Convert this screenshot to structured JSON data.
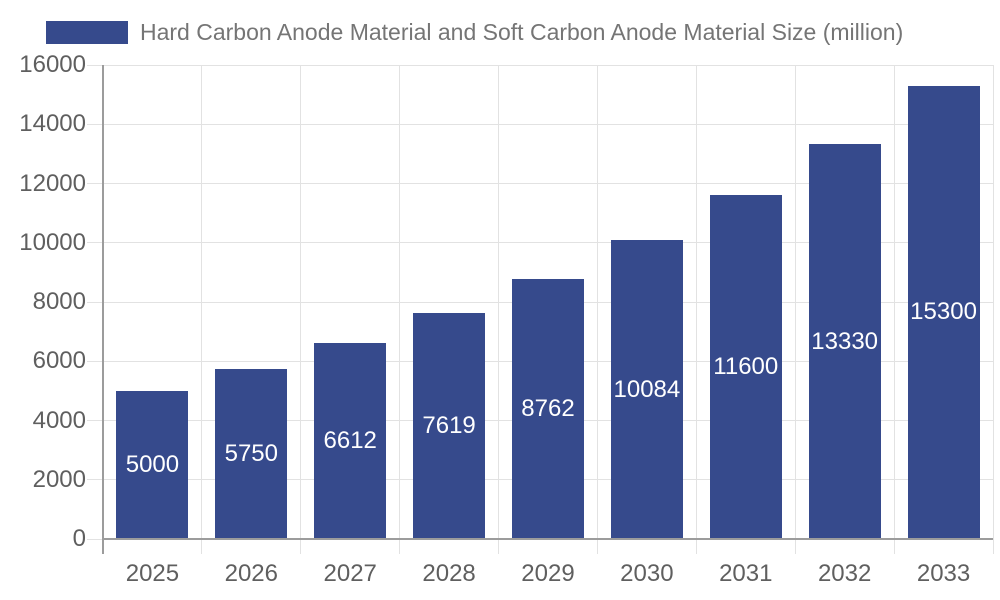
{
  "legend": {
    "label": "Hard Carbon Anode Material and Soft Carbon Anode Material Size (million)"
  },
  "chart_data": {
    "type": "bar",
    "title": "Hard Carbon Anode Material and Soft Carbon Anode Material Size (million)",
    "categories": [
      "2025",
      "2026",
      "2027",
      "2028",
      "2029",
      "2030",
      "2031",
      "2032",
      "2033"
    ],
    "values": [
      5000,
      5750,
      6612,
      7619,
      8762,
      10084,
      11600,
      13330,
      15300
    ],
    "xlabel": "",
    "ylabel": "",
    "ylim": [
      0,
      16000
    ],
    "ytick_step": 2000,
    "yticks": [
      0,
      2000,
      4000,
      6000,
      8000,
      10000,
      12000,
      14000,
      16000
    ],
    "grid": true,
    "legend_position": "top-left",
    "value_labels": "inside-center",
    "colors": {
      "bar": "#364A8C",
      "value_label": "#FFFFFF",
      "title_text": "#757575",
      "axis_label": "#5F5F5F",
      "gridline": "#E2E2E2",
      "axis_line": "#9C9C9C",
      "background": "#FFFFFF"
    }
  }
}
